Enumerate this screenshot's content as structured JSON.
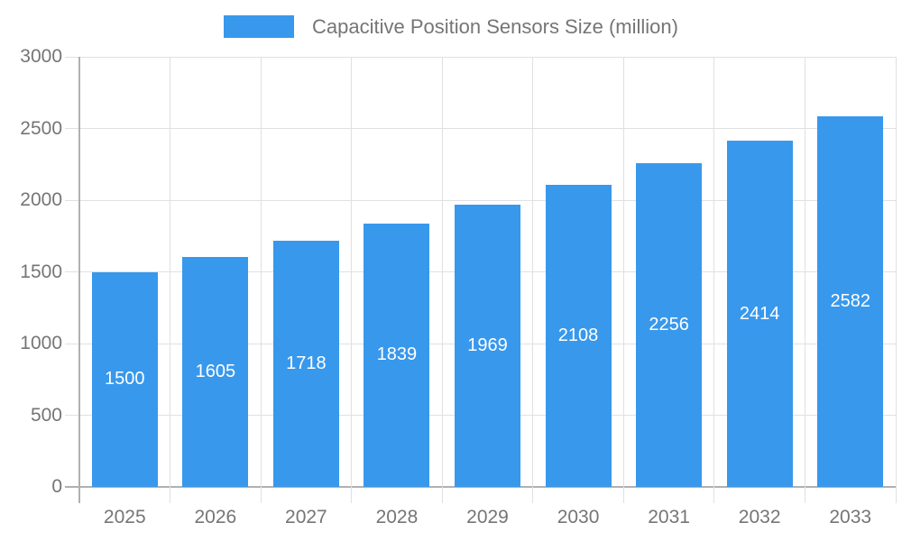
{
  "legend": {
    "label": "Capacitive Position Sensors Size (million)"
  },
  "chart_data": {
    "type": "bar",
    "title": "Capacitive Position Sensors Size (million)",
    "series_name": "Capacitive Position Sensors Size (million)",
    "categories": [
      "2025",
      "2026",
      "2027",
      "2028",
      "2029",
      "2030",
      "2031",
      "2032",
      "2033"
    ],
    "values": [
      1500,
      1605,
      1718,
      1839,
      1969,
      2108,
      2256,
      2414,
      2582
    ],
    "xlabel": "",
    "ylabel": "",
    "ylim": [
      0,
      3000
    ],
    "y_ticks": [
      0,
      500,
      1000,
      1500,
      2000,
      2500,
      3000
    ],
    "grid": true,
    "legend_position": "top",
    "colors": {
      "bar": "#3898EC",
      "bar_label": "#FFFFFF",
      "axis_text": "#757575",
      "grid_line": "#E0E0E0",
      "axis_line": "#B0B0B0",
      "background": "#FFFFFF"
    }
  }
}
